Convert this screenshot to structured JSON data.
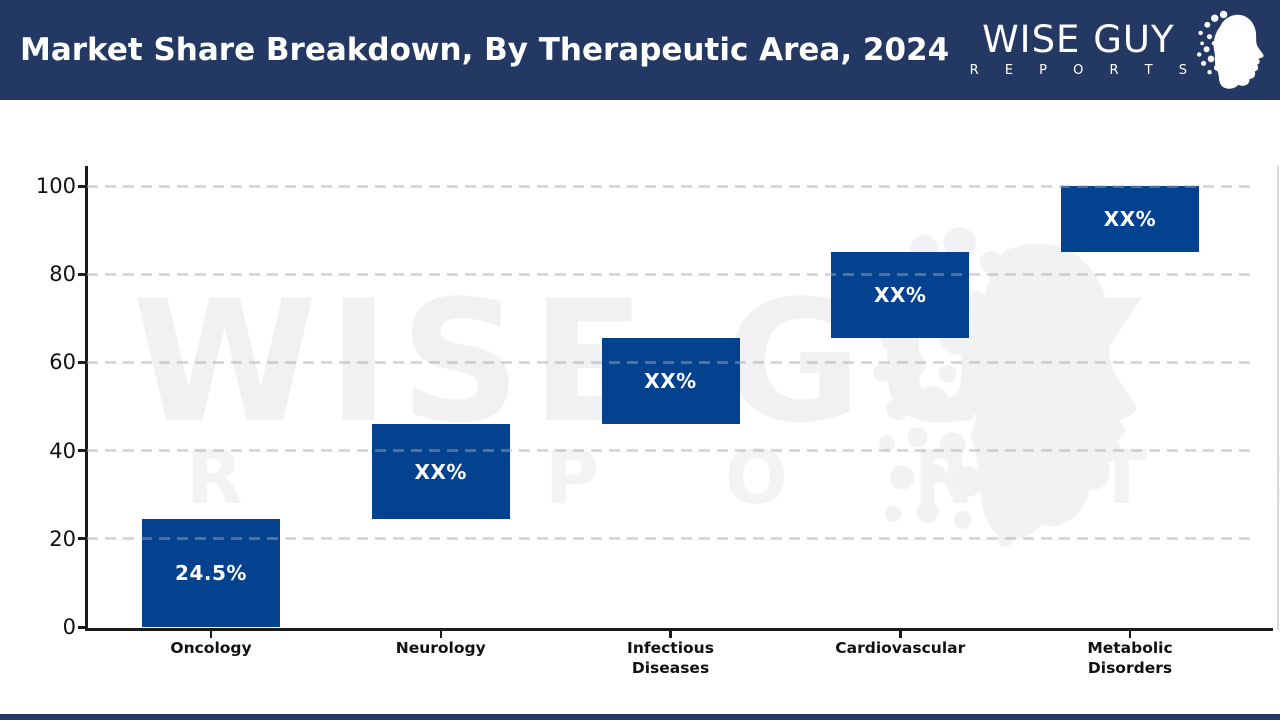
{
  "header": {
    "title": "Market Share Breakdown, By Therapeutic Area, 2024",
    "bg_color": "#233863",
    "logo": {
      "line1": "WISE GUY",
      "line2": "R E P O R T S",
      "face_icon": "dotted-head-profile-icon"
    }
  },
  "watermark": {
    "line1": "WISE GUY",
    "line2": "R E P O R T S",
    "face_icon": "dotted-head-profile-watermark"
  },
  "footer": {
    "bg_color": "#233863"
  },
  "chart_data": {
    "type": "bar",
    "subtype": "waterfall",
    "title": "Market Share Breakdown, By Therapeutic Area, 2024",
    "xlabel": "",
    "ylabel": "",
    "ylim": [
      0,
      100
    ],
    "yticks": [
      "0",
      "20",
      "40",
      "60",
      "80",
      "100"
    ],
    "grid": "dashed-horizontal",
    "legend": "none",
    "bar_color": "#04418f",
    "grid_color": "#d9d9d9",
    "axis_color": "#1a1a1a",
    "categories": [
      "Oncology",
      "Neurology",
      "Infectious Diseases",
      "Cardiovascular",
      "Metabolic Disorders"
    ],
    "segments": [
      {
        "category_lines": [
          "Oncology"
        ],
        "start": 0,
        "end": 24.5,
        "increment": 24.5,
        "label": "24.5%"
      },
      {
        "category_lines": [
          "Neurology"
        ],
        "start": 24.5,
        "end": 46,
        "increment": 21.5,
        "label": "XX%"
      },
      {
        "category_lines": [
          "Infectious",
          "Diseases"
        ],
        "start": 46,
        "end": 65.5,
        "increment": 19.5,
        "label": "XX%"
      },
      {
        "category_lines": [
          "Cardiovascular"
        ],
        "start": 65.5,
        "end": 85,
        "increment": 19.5,
        "label": "XX%"
      },
      {
        "category_lines": [
          "Metabolic",
          "Disorders"
        ],
        "start": 85,
        "end": 100,
        "increment": 15,
        "label": "XX%"
      }
    ]
  }
}
